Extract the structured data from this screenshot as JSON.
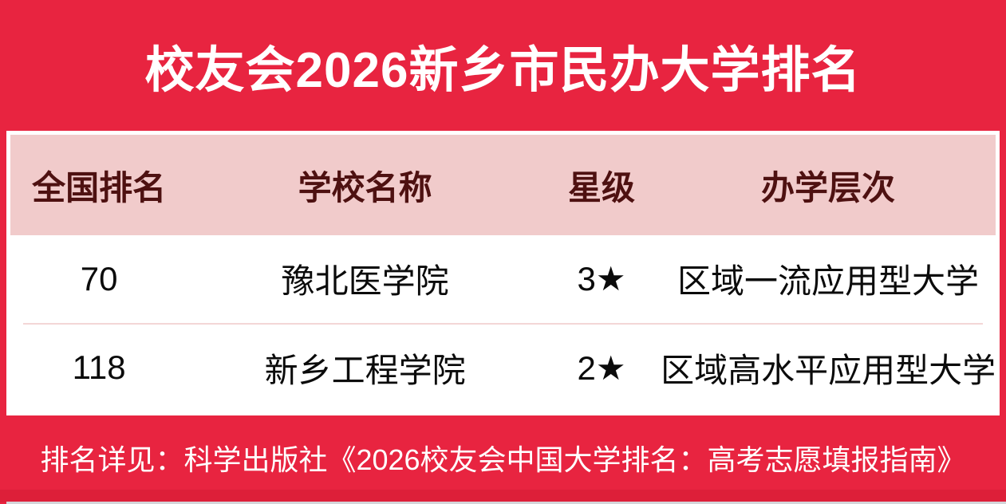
{
  "title": "校友会2026新乡市民办大学排名",
  "table": {
    "columns": [
      "全国排名",
      "学校名称",
      "星级",
      "办学层次"
    ],
    "rows": [
      {
        "rank": "70",
        "school": "豫北医学院",
        "stars": "3★",
        "level": "区域一流应用型大学"
      },
      {
        "rank": "118",
        "school": "新乡工程学院",
        "stars": "2★",
        "level": "区域高水平应用型大学"
      }
    ]
  },
  "footer": "排名详见：科学出版社《2026校友会中国大学排名：高考志愿填报指南》",
  "colors": {
    "red": "#e82440",
    "red-dark": "#dd1f39",
    "pink": "#f1cbcb",
    "maroon": "#4e1111",
    "header-bg-card": "#ffffff",
    "title-text": "#ffffff",
    "body-text": "#0b0b0b",
    "divider": "#f3d6d6"
  }
}
